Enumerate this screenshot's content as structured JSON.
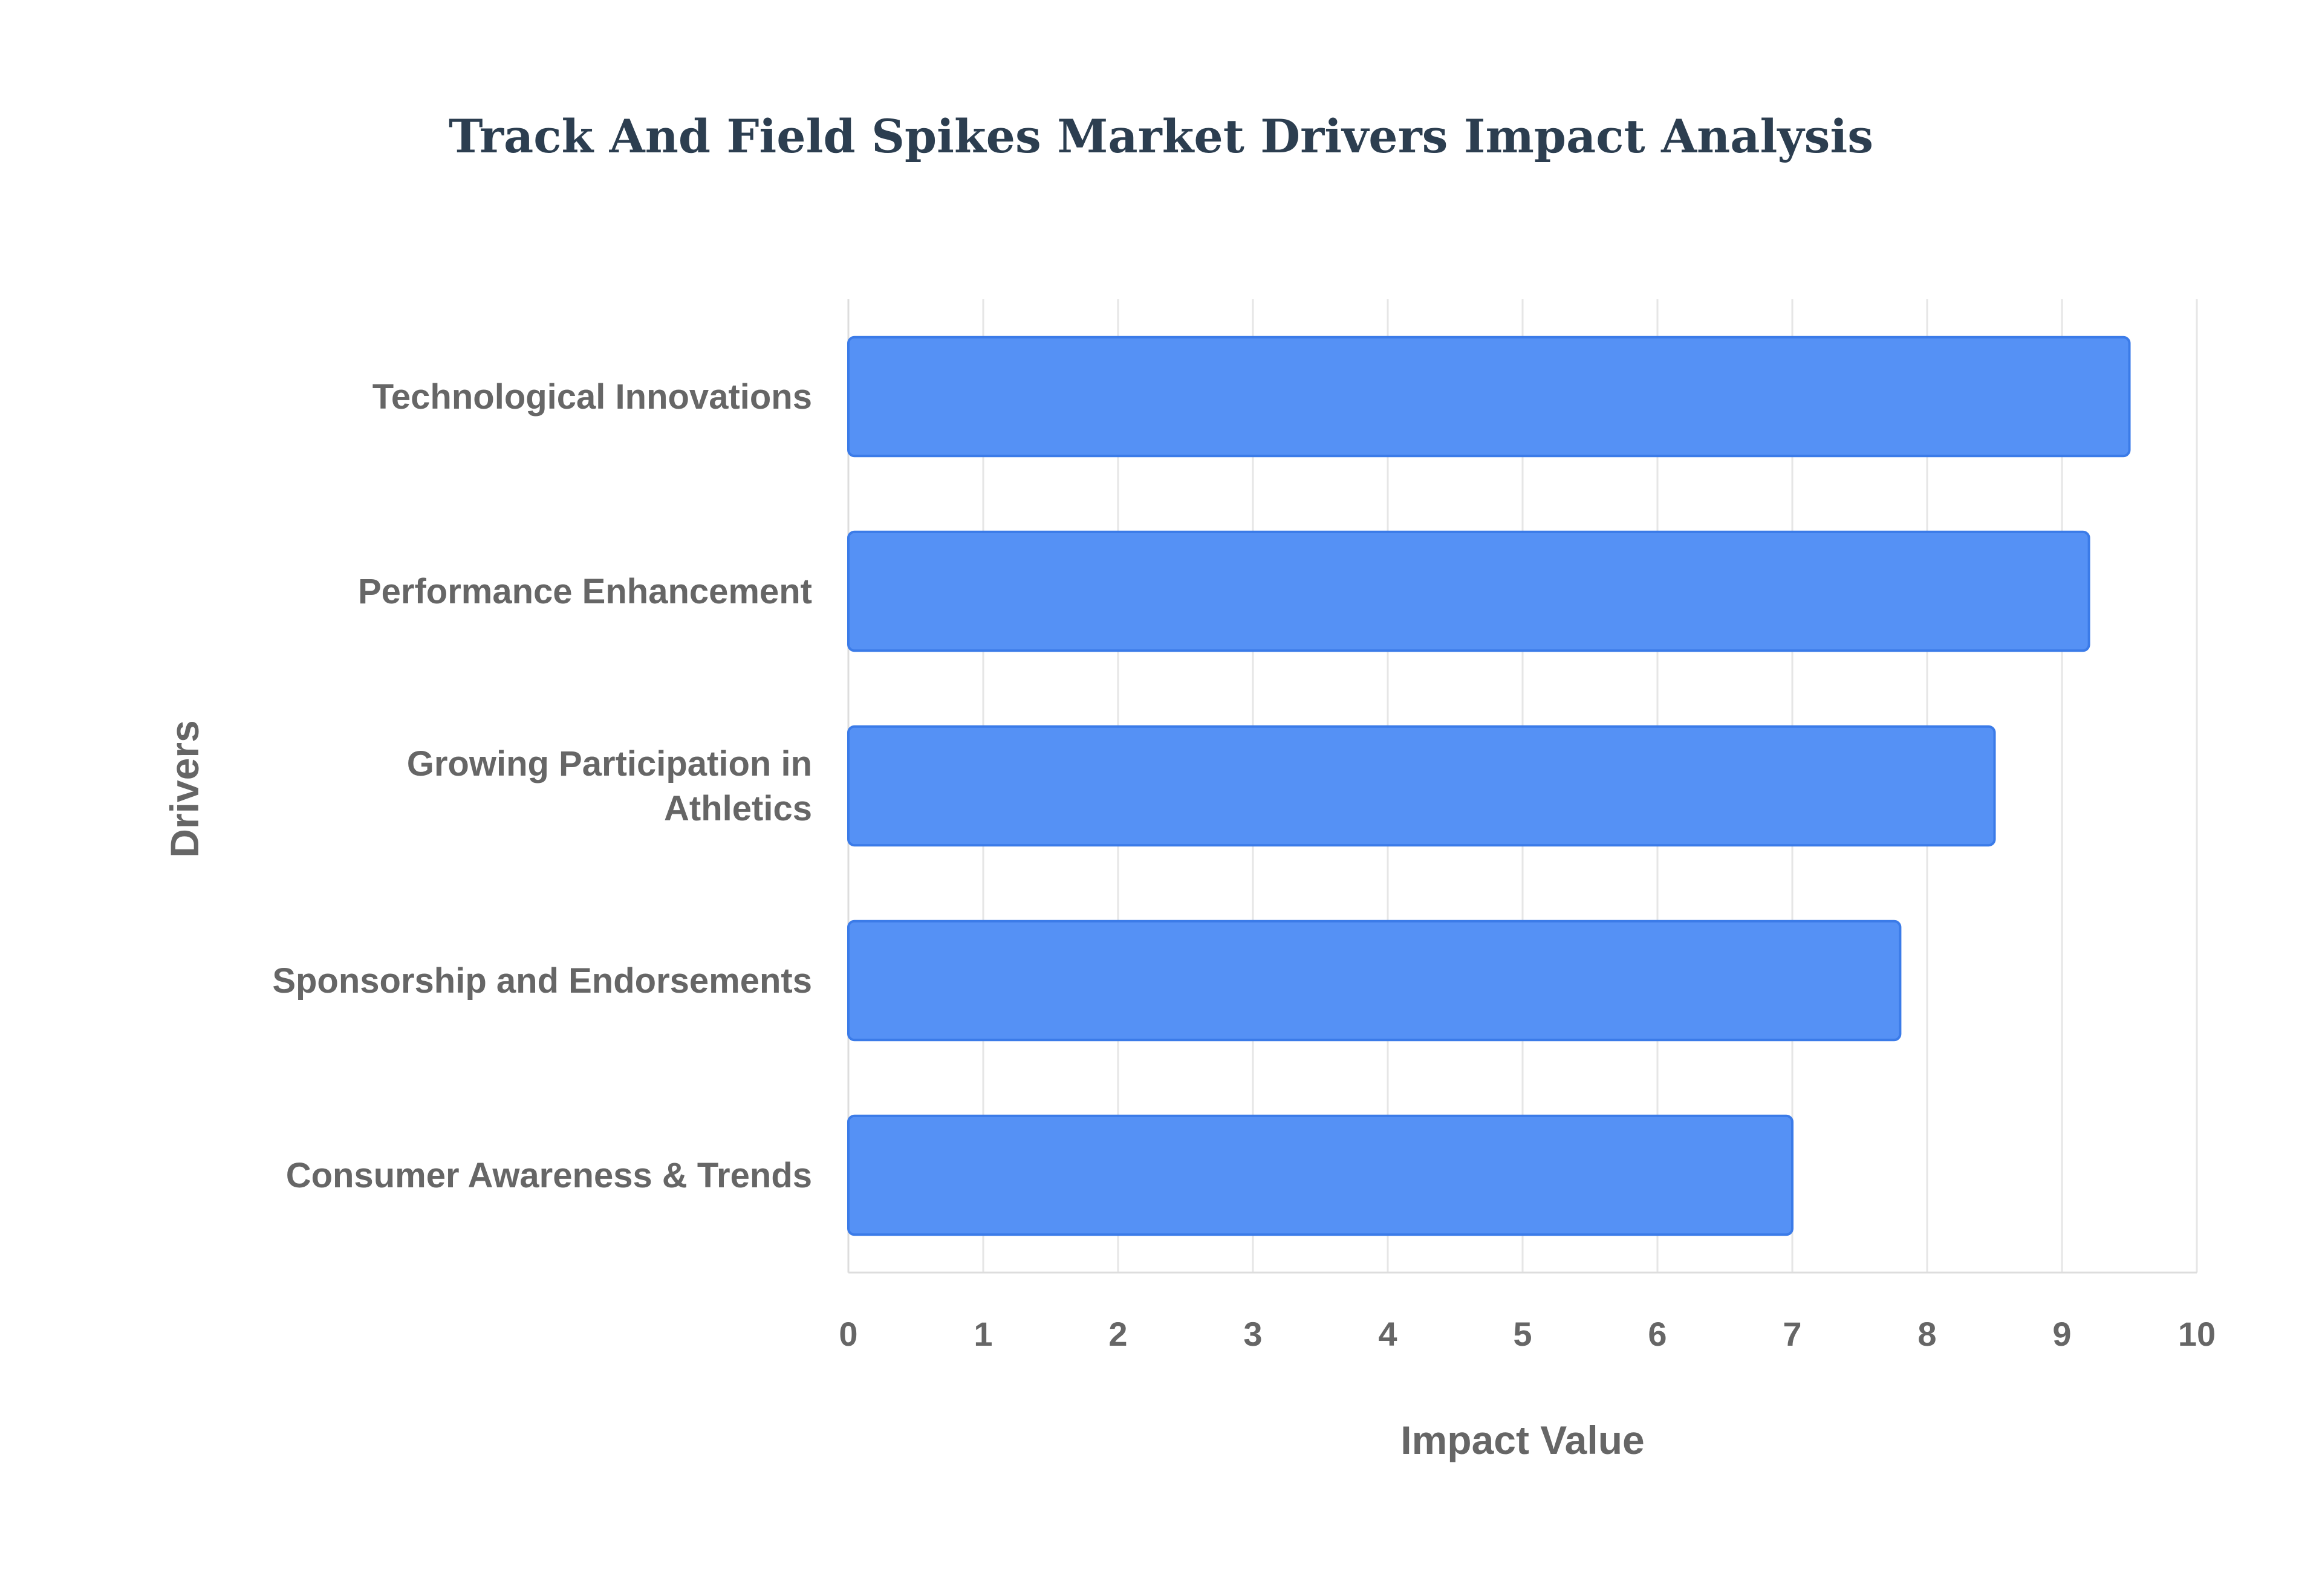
{
  "chart_data": {
    "type": "bar",
    "orientation": "horizontal",
    "title": "Track And Field Spikes Market Drivers Impact Analysis",
    "xlabel": "Impact Value",
    "ylabel": "Drivers",
    "categories": [
      "Technological Innovations",
      "Performance Enhancement",
      "Growing Participation in Athletics",
      "Sponsorship and Endorsements",
      "Consumer Awareness & Trends"
    ],
    "values": [
      9.5,
      9.2,
      8.5,
      7.8,
      7.0
    ],
    "xlim": [
      0,
      10
    ],
    "xticks": [
      "0",
      "1",
      "2",
      "3",
      "4",
      "5",
      "6",
      "7",
      "8",
      "9",
      "10"
    ],
    "grid": true,
    "legend": "none",
    "colors": {
      "bar_fill": "#5591f5",
      "bar_stroke": "#3b7be8",
      "title": "#2c3e50",
      "label": "#666666",
      "grid": "#e6e6e6"
    }
  }
}
